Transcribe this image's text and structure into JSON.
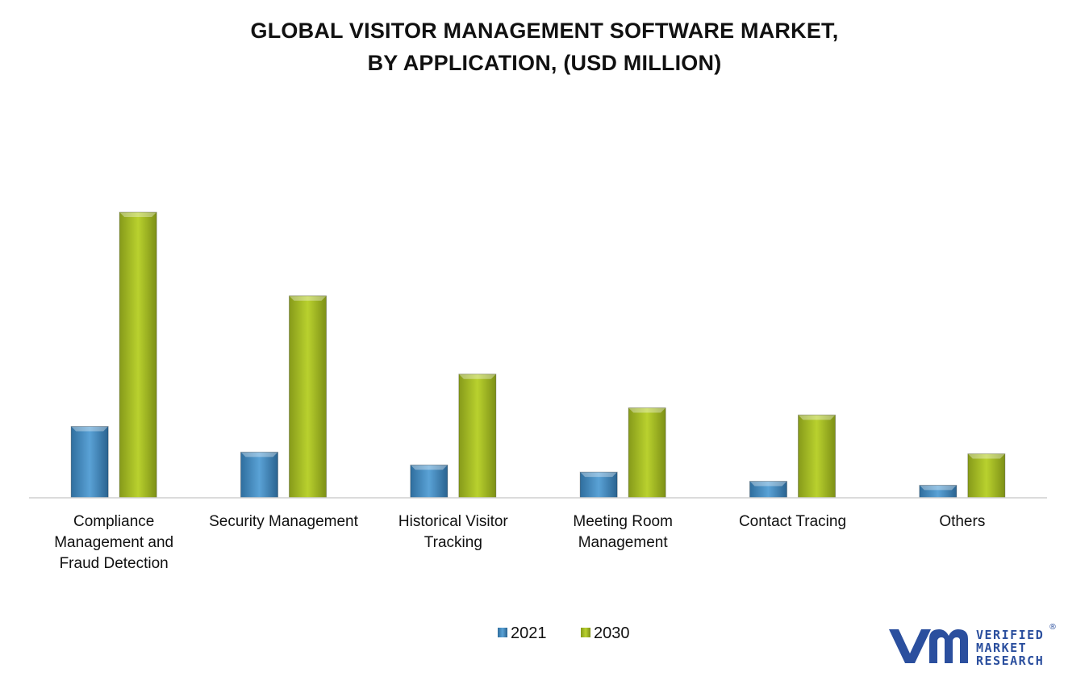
{
  "title_line1": "GLOBAL VISITOR MANAGEMENT SOFTWARE MARKET,",
  "title_line2": "BY APPLICATION,  (USD MILLION)",
  "chart_data": {
    "type": "bar",
    "categories": [
      [
        "Compliance",
        "Management and",
        "Fraud Detection"
      ],
      [
        "Security Management"
      ],
      [
        "Historical Visitor",
        "Tracking"
      ],
      [
        "Meeting Room",
        "Management"
      ],
      [
        "Contact Tracing"
      ],
      [
        "Others"
      ]
    ],
    "series": [
      {
        "name": "2021",
        "values": [
          25,
          16,
          11.5,
          9,
          5.8,
          4.4
        ],
        "color": "#4a90c4"
      },
      {
        "name": "2030",
        "values": [
          100,
          70.7,
          43.3,
          31.5,
          29,
          15.4
        ],
        "color": "#a9c22a"
      }
    ],
    "ylim": [
      0,
      100
    ],
    "grid": false,
    "legend_position": "bottom-center",
    "axis_line": true
  },
  "logo": {
    "mark": "vm",
    "line1": "VERIFIED",
    "line2": "MARKET",
    "line3": "RESEARCH",
    "registered": "®",
    "color": "#2b4f9e"
  }
}
